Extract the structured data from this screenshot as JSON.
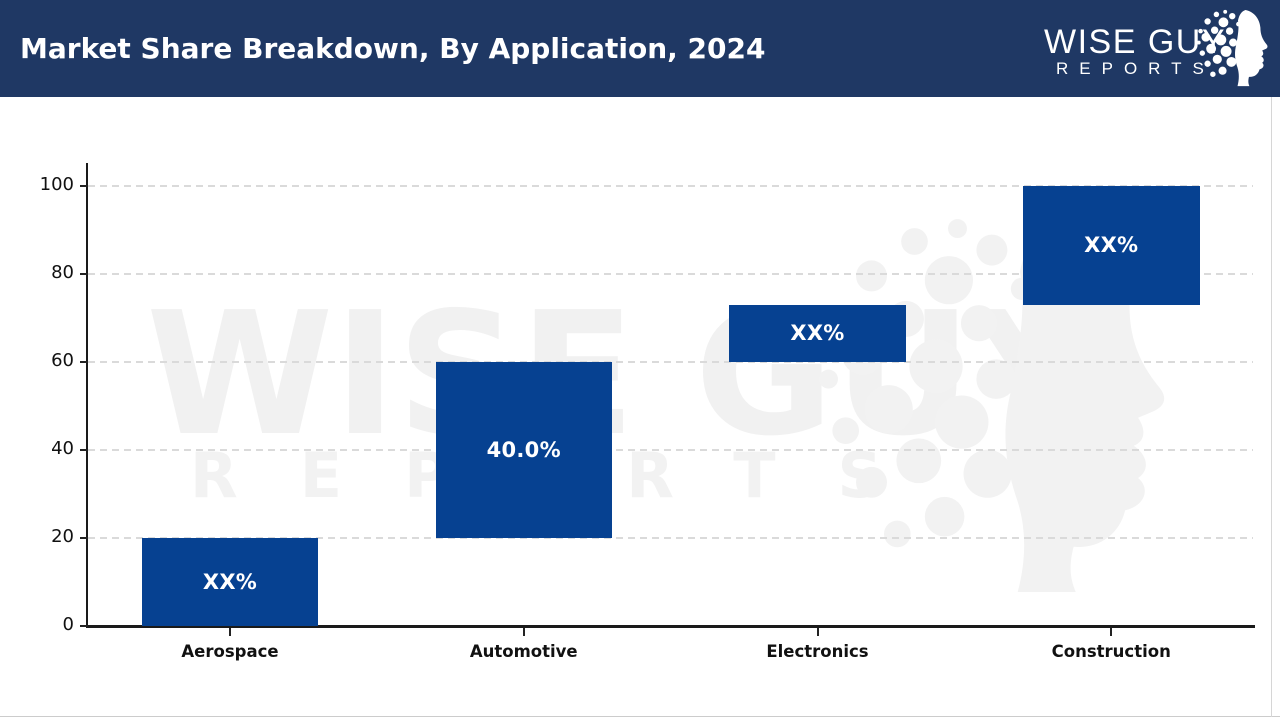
{
  "header": {
    "title": "Market Share Breakdown, By Application, 2024",
    "logo": {
      "brand": "WISE GUY",
      "reports": "REPORTS"
    }
  },
  "watermark": {
    "line1": "WISE GUY",
    "line2": "REPORTS"
  },
  "colors": {
    "header_bg": "#1f3864",
    "bar": "#064191",
    "bar_label": "#ffffff",
    "axis": "#1a1a1a",
    "grid": "#dadada",
    "watermark": "#f1f1f1"
  },
  "chart_data": {
    "type": "bar",
    "subtype": "waterfall-floating-bars",
    "title": "Market Share Breakdown, By Application, 2024",
    "categories": [
      "Aerospace",
      "Automotive",
      "Electronics",
      "Construction"
    ],
    "bars": [
      {
        "category": "Aerospace",
        "start": 0,
        "end": 20,
        "label": "XX%"
      },
      {
        "category": "Automotive",
        "start": 20,
        "end": 60,
        "label": "40.0%"
      },
      {
        "category": "Electronics",
        "start": 60,
        "end": 73,
        "label": "XX%"
      },
      {
        "category": "Construction",
        "start": 73,
        "end": 100,
        "label": "XX%"
      }
    ],
    "values": [
      20,
      40,
      13,
      27
    ],
    "y_ticks": [
      0,
      20,
      40,
      60,
      80,
      100
    ],
    "ylim": [
      0,
      105
    ],
    "xlabel": "",
    "ylabel": "",
    "grid": "horizontal-dashed",
    "legend": "none",
    "bar_color": "#064191",
    "bar_label_color": "#ffffff"
  }
}
